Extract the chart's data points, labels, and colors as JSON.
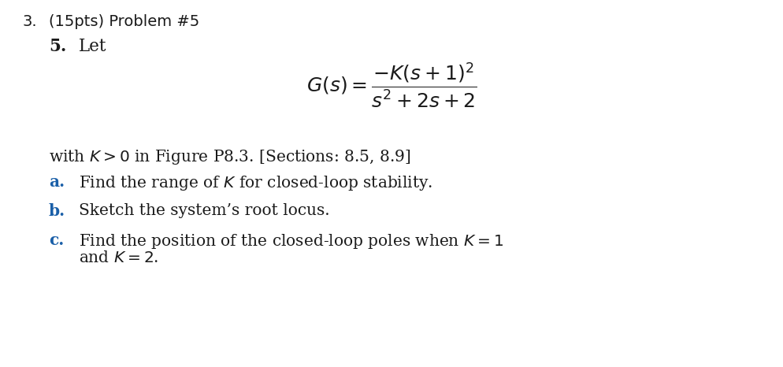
{
  "background_color": "#ffffff",
  "header_number": "3.",
  "header_pts": "(15pts) Problem #5",
  "problem_number": "5.",
  "problem_intro": "Let",
  "label_color": "#1a5fa8",
  "text_color": "#1a1a1a",
  "header_fontsize": 14,
  "body_fontsize": 14.5,
  "bold_fontsize": 15,
  "formula_fontsize": 16,
  "line_with_K": "with $\\mathit{K} > 0$ in Figure P8.3. [Sections: 8.5, 8.9]",
  "part_a_label": "a.",
  "part_a_text": "Find the range of $\\mathit{K}$ for closed-loop stability.",
  "part_b_label": "b.",
  "part_b_text": "Sketch the system’s root locus.",
  "part_c_label": "c.",
  "part_c_line1": "Find the position of the closed-loop poles when $\\mathit{K} = 1$",
  "part_c_line2": "and $\\mathit{K} = 2$."
}
